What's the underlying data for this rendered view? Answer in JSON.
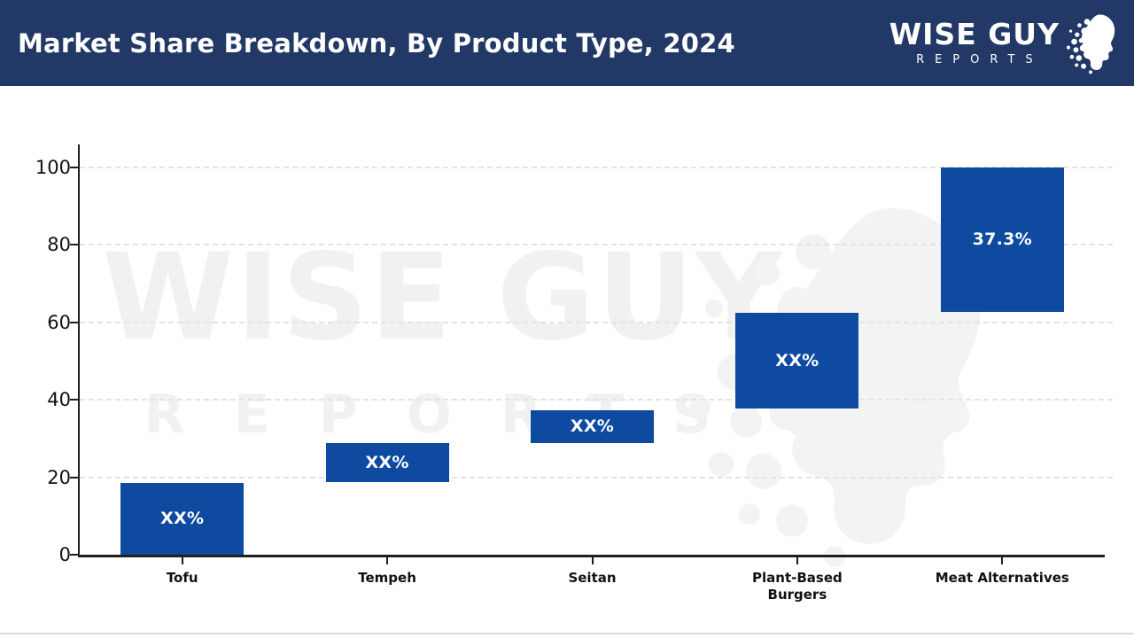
{
  "header": {
    "title": "Market Share Breakdown, By Product Type, 2024",
    "bg_color": "#223866",
    "logo": {
      "line1": "WISE GUY",
      "line2": "REPORTS",
      "head_icon": "dotted-head-profile"
    }
  },
  "watermark": {
    "line1": "WISE GUY",
    "line2": "REPORTS",
    "head_icon": "dotted-head-profile"
  },
  "chart_data": {
    "type": "bar",
    "variant": "waterfall",
    "title": "Market Share Breakdown, By Product Type, 2024",
    "categories": [
      "Tofu",
      "Tempeh",
      "Seitan",
      "Plant-Based Burgers",
      "Meat Alternatives"
    ],
    "tick_labels": [
      "Tofu",
      "Tempeh",
      "Seitan",
      "Plant-Based\nBurgers",
      "Meat Alternatives"
    ],
    "segments": [
      {
        "category": "Tofu",
        "start": 0,
        "end": 18.6,
        "label": "XX%"
      },
      {
        "category": "Tempeh",
        "start": 18.8,
        "end": 28.8,
        "label": "XX%"
      },
      {
        "category": "Seitan",
        "start": 28.8,
        "end": 37.3,
        "label": "XX%"
      },
      {
        "category": "Plant-Based Burgers",
        "start": 37.7,
        "end": 62.4,
        "label": "XX%"
      },
      {
        "category": "Meat Alternatives",
        "start": 62.7,
        "end": 100,
        "label": "37.3%"
      }
    ],
    "xlabel": "",
    "ylabel": "",
    "ylim": [
      0,
      105.5
    ],
    "yticks": [
      0,
      20,
      40,
      60,
      80,
      100
    ],
    "grid": "horizontal-dashed",
    "legend": "none",
    "bar_color": "#0d4aa0",
    "bar_label_color": "#ffffff",
    "axis_color": "#1f1f1f",
    "grid_color": "#e3e3e3"
  }
}
